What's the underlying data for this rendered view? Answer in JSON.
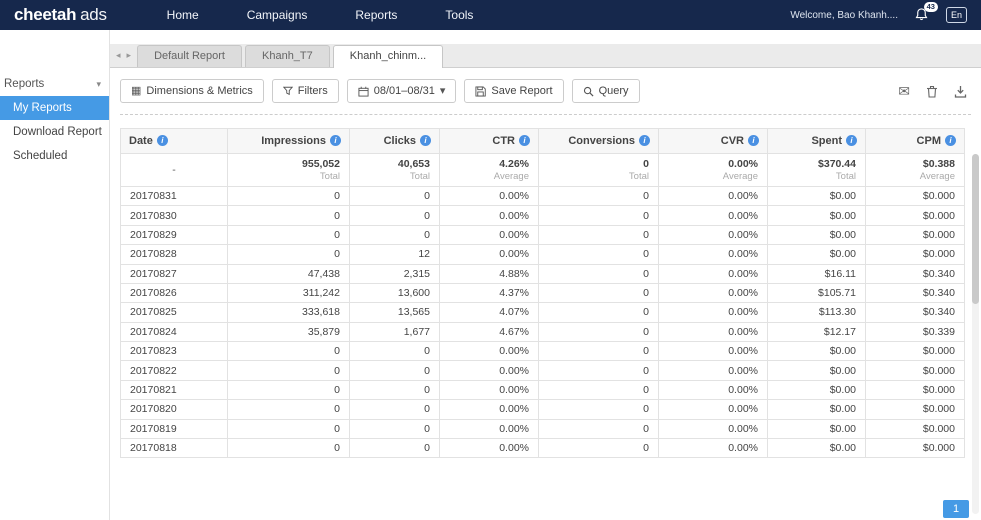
{
  "icons": {
    "chevron_down": "▾",
    "arrow_left": "◂",
    "arrow_right": "▸",
    "grid": "▦",
    "envelope": "✉"
  },
  "navbar": {
    "logo_bold": "cheetah",
    "logo_light": "ads",
    "items": [
      {
        "label": "Home"
      },
      {
        "label": "Campaigns"
      },
      {
        "label": "Reports"
      },
      {
        "label": "Tools"
      }
    ],
    "welcome": "Welcome,  Bao Khanh....",
    "notification_count": "43",
    "language": "En"
  },
  "sidebar": {
    "section_label": "Reports",
    "items": [
      {
        "label": "My Reports",
        "active": true
      },
      {
        "label": "Download Report",
        "active": false
      },
      {
        "label": "Scheduled",
        "active": false
      }
    ]
  },
  "tabs": [
    {
      "label": "Default Report",
      "active": false
    },
    {
      "label": "Khanh_T7",
      "active": false
    },
    {
      "label": "Khanh_chinm...",
      "active": true
    }
  ],
  "toolbar": {
    "dimensions_metrics_label": "Dimensions & Metrics",
    "filters_label": "Filters",
    "date_range_label": "08/01–08/31",
    "save_report_label": "Save Report",
    "query_label": "Query"
  },
  "table": {
    "columns": [
      "Date",
      "Impressions",
      "Clicks",
      "CTR",
      "Conversions",
      "CVR",
      "Spent",
      "CPM"
    ],
    "summary": {
      "date": "-",
      "values": [
        {
          "value": "955,052",
          "sub": "Total"
        },
        {
          "value": "40,653",
          "sub": "Total"
        },
        {
          "value": "4.26%",
          "sub": "Average"
        },
        {
          "value": "0",
          "sub": "Total"
        },
        {
          "value": "0.00%",
          "sub": "Average"
        },
        {
          "value": "$370.44",
          "sub": "Total"
        },
        {
          "value": "$0.388",
          "sub": "Average"
        }
      ]
    },
    "rows": [
      [
        "20170831",
        "0",
        "0",
        "0.00%",
        "0",
        "0.00%",
        "$0.00",
        "$0.000"
      ],
      [
        "20170830",
        "0",
        "0",
        "0.00%",
        "0",
        "0.00%",
        "$0.00",
        "$0.000"
      ],
      [
        "20170829",
        "0",
        "0",
        "0.00%",
        "0",
        "0.00%",
        "$0.00",
        "$0.000"
      ],
      [
        "20170828",
        "0",
        "12",
        "0.00%",
        "0",
        "0.00%",
        "$0.00",
        "$0.000"
      ],
      [
        "20170827",
        "47,438",
        "2,315",
        "4.88%",
        "0",
        "0.00%",
        "$16.11",
        "$0.340"
      ],
      [
        "20170826",
        "311,242",
        "13,600",
        "4.37%",
        "0",
        "0.00%",
        "$105.71",
        "$0.340"
      ],
      [
        "20170825",
        "333,618",
        "13,565",
        "4.07%",
        "0",
        "0.00%",
        "$113.30",
        "$0.340"
      ],
      [
        "20170824",
        "35,879",
        "1,677",
        "4.67%",
        "0",
        "0.00%",
        "$12.17",
        "$0.339"
      ],
      [
        "20170823",
        "0",
        "0",
        "0.00%",
        "0",
        "0.00%",
        "$0.00",
        "$0.000"
      ],
      [
        "20170822",
        "0",
        "0",
        "0.00%",
        "0",
        "0.00%",
        "$0.00",
        "$0.000"
      ],
      [
        "20170821",
        "0",
        "0",
        "0.00%",
        "0",
        "0.00%",
        "$0.00",
        "$0.000"
      ],
      [
        "20170820",
        "0",
        "0",
        "0.00%",
        "0",
        "0.00%",
        "$0.00",
        "$0.000"
      ],
      [
        "20170819",
        "0",
        "0",
        "0.00%",
        "0",
        "0.00%",
        "$0.00",
        "$0.000"
      ],
      [
        "20170818",
        "0",
        "0",
        "0.00%",
        "0",
        "0.00%",
        "$0.00",
        "$0.000"
      ]
    ]
  },
  "pagination": {
    "page": "1"
  },
  "colors": {
    "accent_blue": "#459ae5",
    "navbar_navy": "#16284c",
    "info_blue": "#4a90e2"
  }
}
